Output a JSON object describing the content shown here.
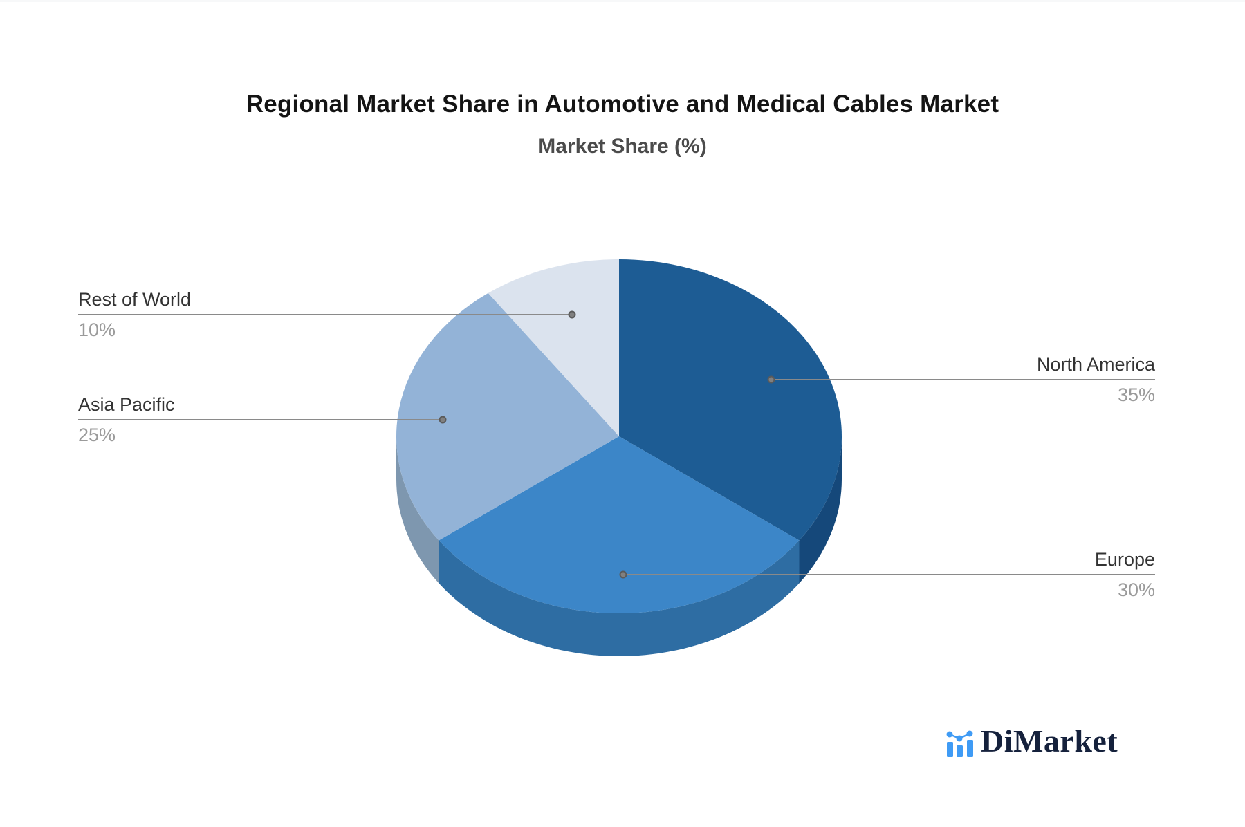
{
  "chart": {
    "title": "Regional Market Share in Automotive and Medical Cables Market",
    "subtitle": "Market Share (%)"
  },
  "chart_data": {
    "type": "pie",
    "title": "Regional Market Share in Automotive and Medical Cables Market",
    "subtitle": "Market Share (%)",
    "unit": "%",
    "effect": "3d",
    "start_angle_deg": 0,
    "direction": "clockwise",
    "categories": [
      "North America",
      "Europe",
      "Asia Pacific",
      "Rest of World"
    ],
    "values": [
      35,
      30,
      25,
      10
    ],
    "value_labels": [
      "35%",
      "30%",
      "25%",
      "10%"
    ],
    "colors": [
      "#1d5c94",
      "#3c86c8",
      "#93b3d7",
      "#dbe3ee"
    ],
    "side_colors": [
      "#15487a",
      "#2e6da3",
      "#7e97af",
      "#b9c6d8"
    ],
    "legend_position": "callouts",
    "callout_line_color": "#8a8a8a",
    "label_color": "#333333",
    "value_color": "#9a9a9a"
  },
  "logo": {
    "text": "DiMarket",
    "icon": "bar-chart-with-dots",
    "icon_color": "#3f9bf5"
  }
}
